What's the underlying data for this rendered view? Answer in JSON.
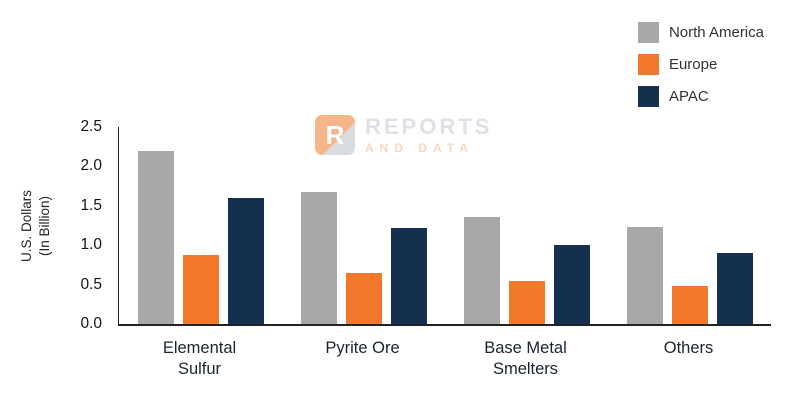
{
  "chart_data": {
    "type": "bar",
    "title": "",
    "categories": [
      "Elemental Sulfur",
      "Pyrite Ore",
      "Base Metal Smelters",
      "Others"
    ],
    "series": [
      {
        "name": "North America",
        "color": "#a8a8a8",
        "values": [
          2.2,
          1.67,
          1.36,
          1.23
        ]
      },
      {
        "name": "Europe",
        "color": "#f2782b",
        "values": [
          0.87,
          0.65,
          0.54,
          0.48
        ]
      },
      {
        "name": "APAC",
        "color": "#14304e",
        "values": [
          1.6,
          1.22,
          1.0,
          0.9
        ]
      }
    ],
    "ylabel_line1": "U.S. Dollars",
    "ylabel_line2": "(In Billion)",
    "xlabel": "",
    "yticks": [
      2.5,
      2.0,
      1.5,
      1.0,
      0.5,
      0.0
    ],
    "ylim": [
      0,
      2.5
    ],
    "grid": false,
    "legend_position": "top-right"
  },
  "watermark": {
    "logo_letter": "R",
    "text": "REPORTS",
    "subtext": "AND DATA"
  }
}
